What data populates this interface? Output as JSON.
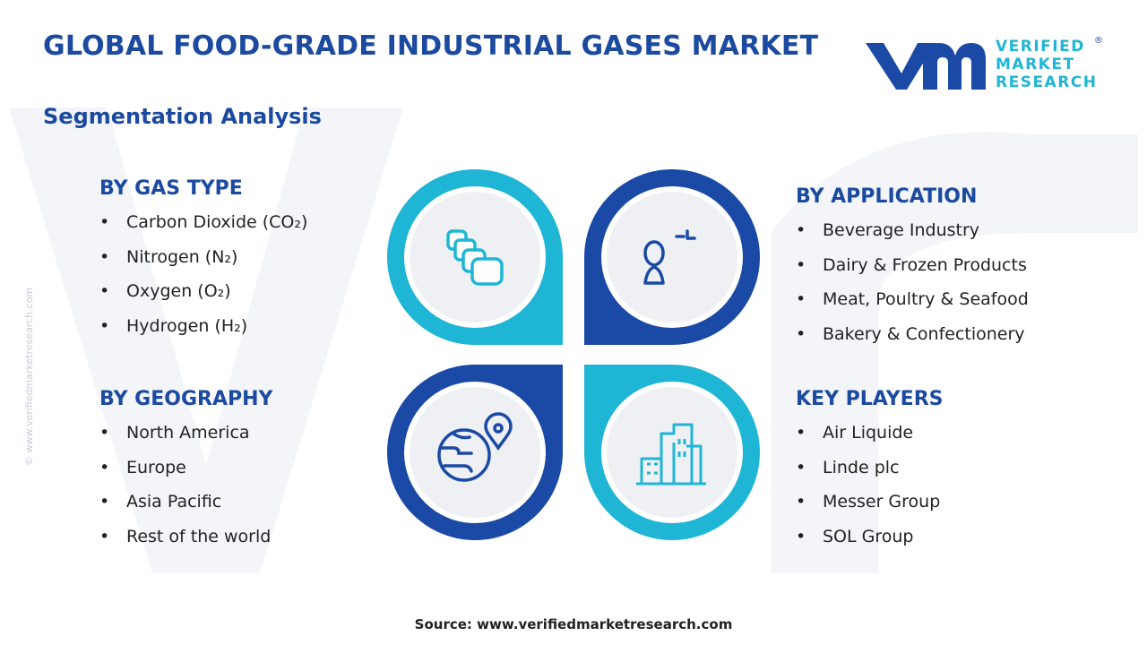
{
  "header": {
    "title": "GLOBAL FOOD-GRADE INDUSTRIAL GASES MARKET",
    "subtitle": "Segmentation Analysis"
  },
  "logo": {
    "lines": [
      "VERIFIED",
      "MARKET",
      "RESEARCH"
    ],
    "registered": "®"
  },
  "side_text": "© www.verifiedmarketresearch.com",
  "segments": [
    {
      "title": "BY GAS TYPE",
      "items": [
        "Carbon Dioxide (CO₂)",
        "Nitrogen (N₂)",
        "Oxygen (O₂)",
        "Hydrogen (H₂)"
      ]
    },
    {
      "title": "BY APPLICATION",
      "items": [
        "Beverage Industry",
        "Dairy & Frozen Products",
        "Meat, Poultry & Seafood",
        "Bakery & Confectionery"
      ]
    },
    {
      "title": "BY GEOGRAPHY",
      "items": [
        "North America",
        "Europe",
        "Asia Pacific",
        "Rest of the world"
      ]
    },
    {
      "title": "KEY PLAYERS",
      "items": [
        "Air Liquide",
        "Linde plc",
        "Messer Group",
        "SOL Group"
      ]
    }
  ],
  "source": "Source: www.verifiedmarketresearch.com"
}
